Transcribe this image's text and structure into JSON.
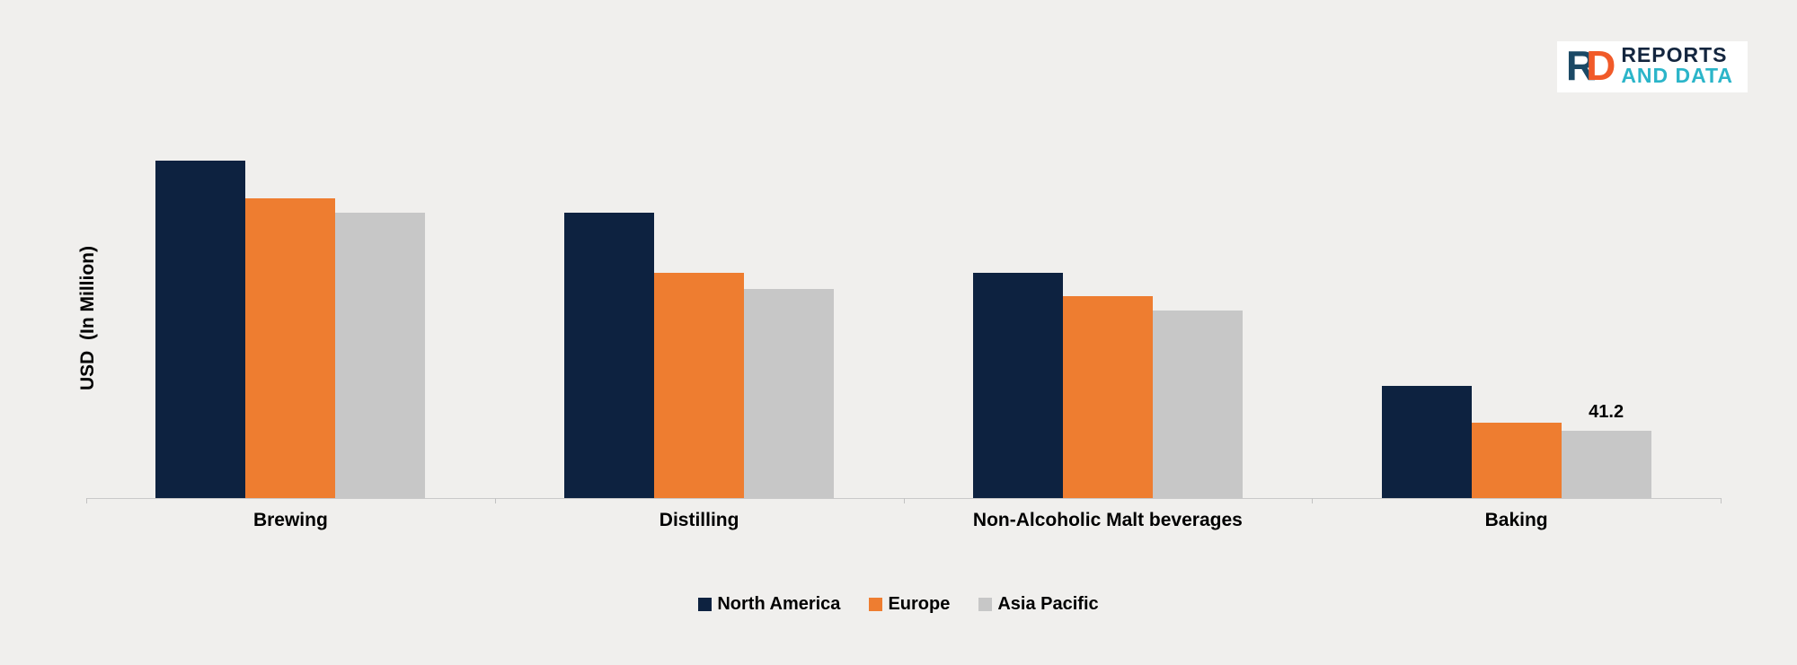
{
  "background_color": "#f0efed",
  "logo": {
    "icon_text_r": "R",
    "icon_text_d": "D",
    "line1": "REPORTS",
    "line2": "AND DATA",
    "colors": {
      "navy": "#1b4965",
      "orange": "#f15a29",
      "teal": "#2bb5c9"
    }
  },
  "chart_data": {
    "type": "bar",
    "title": "",
    "xlabel": "",
    "ylabel": "USD  (In Million)",
    "ylim": [
      0,
      220
    ],
    "grid": false,
    "legend_position": "bottom",
    "categories": [
      "Brewing",
      "Distilling",
      "Non-Alcoholic Malt beverages",
      "Baking"
    ],
    "series": [
      {
        "name": "North America",
        "color": "#0d2240",
        "values": [
          207,
          175,
          138,
          69
        ]
      },
      {
        "name": "Europe",
        "color": "#ee7d30",
        "values": [
          184,
          138,
          124,
          46
        ]
      },
      {
        "name": "Asia Pacific",
        "color": "#c7c7c7",
        "values": [
          175,
          128,
          115,
          41.2
        ]
      }
    ],
    "data_labels": [
      {
        "category": "Baking",
        "series": "Asia Pacific",
        "text": "41.2"
      }
    ]
  }
}
